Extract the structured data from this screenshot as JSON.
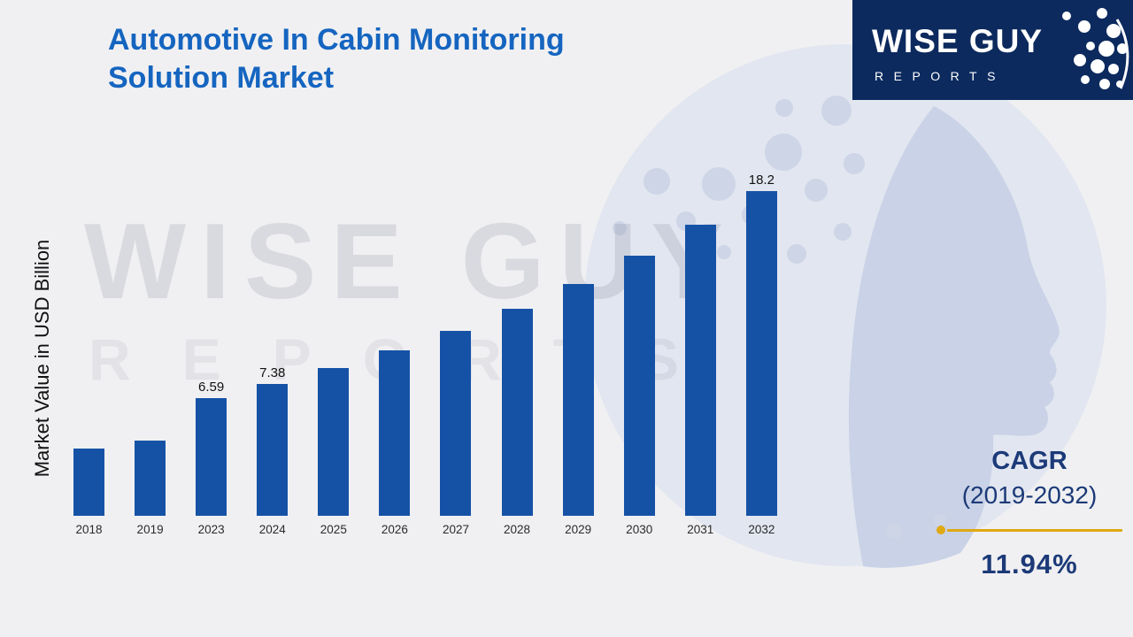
{
  "title": "Automotive In Cabin Monitoring Solution Market",
  "watermark": {
    "line1": "WISE GUY",
    "line2": "REPORTS"
  },
  "brand": {
    "line1": "WISE GUY",
    "line2": "REPORTS"
  },
  "cagr": {
    "label": "CAGR",
    "range": "(2019-2032)",
    "value": "11.94%"
  },
  "chart_data": {
    "type": "bar",
    "title": "Automotive In Cabin Monitoring Solution Market",
    "xlabel": "",
    "ylabel": "Market Value in USD Billion",
    "categories": [
      "2018",
      "2019",
      "2023",
      "2024",
      "2025",
      "2026",
      "2027",
      "2028",
      "2029",
      "2030",
      "2031",
      "2032"
    ],
    "values": [
      3.75,
      4.2,
      6.59,
      7.38,
      8.26,
      9.25,
      10.35,
      11.59,
      12.97,
      14.52,
      16.25,
      18.2
    ],
    "data_labels": [
      "",
      "",
      "6.59",
      "7.38",
      "",
      "",
      "",
      "",
      "",
      "",
      "",
      "18.2"
    ],
    "ylim": [
      0,
      20
    ],
    "grid": false,
    "legend": "none",
    "units": "USD Billion"
  },
  "colors": {
    "title": "#1565c0",
    "bar": "#1552a6",
    "brand_bg": "#0c2a5e",
    "cagr_text": "#1c3a78",
    "gold": "#dfa912",
    "background": "#f0f0f2",
    "circle": "#e2e6f0",
    "face": "#c9d2e6",
    "dots": "#cdd5e6"
  }
}
